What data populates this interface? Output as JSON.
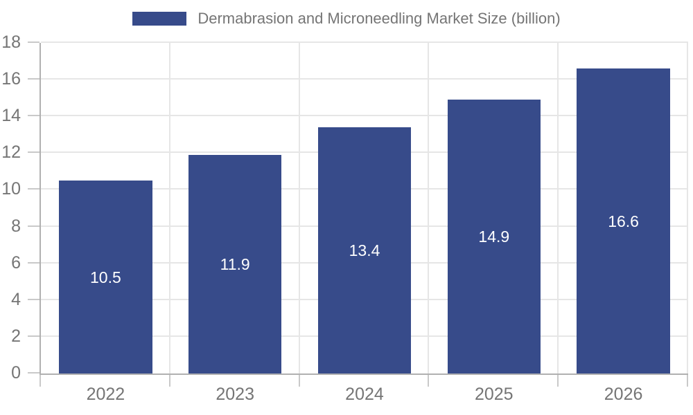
{
  "chart_data": {
    "type": "bar",
    "title": "Dermabrasion and Microneedling Market Size (billion)",
    "categories": [
      "2022",
      "2023",
      "2024",
      "2025",
      "2026"
    ],
    "values": [
      10.5,
      11.9,
      13.4,
      14.9,
      16.6
    ],
    "value_labels": [
      "10.5",
      "11.9",
      "13.4",
      "14.9",
      "16.6"
    ],
    "xlabel": "",
    "ylabel": "",
    "ylim": [
      0,
      18
    ],
    "ytick_step": 2,
    "ytick_labels": [
      "0",
      "2",
      "4",
      "6",
      "8",
      "10",
      "12",
      "14",
      "16",
      "18"
    ],
    "grid": "both",
    "legend_position": "top-center",
    "colors": {
      "bar_fill": "#374b8a",
      "gridline": "#e6e6e6",
      "axis_line": "#b0b0b0",
      "tick_mark": "#c9c9c9",
      "tick_text": "#757575",
      "legend_text": "#757575",
      "bar_label_text": "#ffffff",
      "background": "#ffffff"
    }
  }
}
